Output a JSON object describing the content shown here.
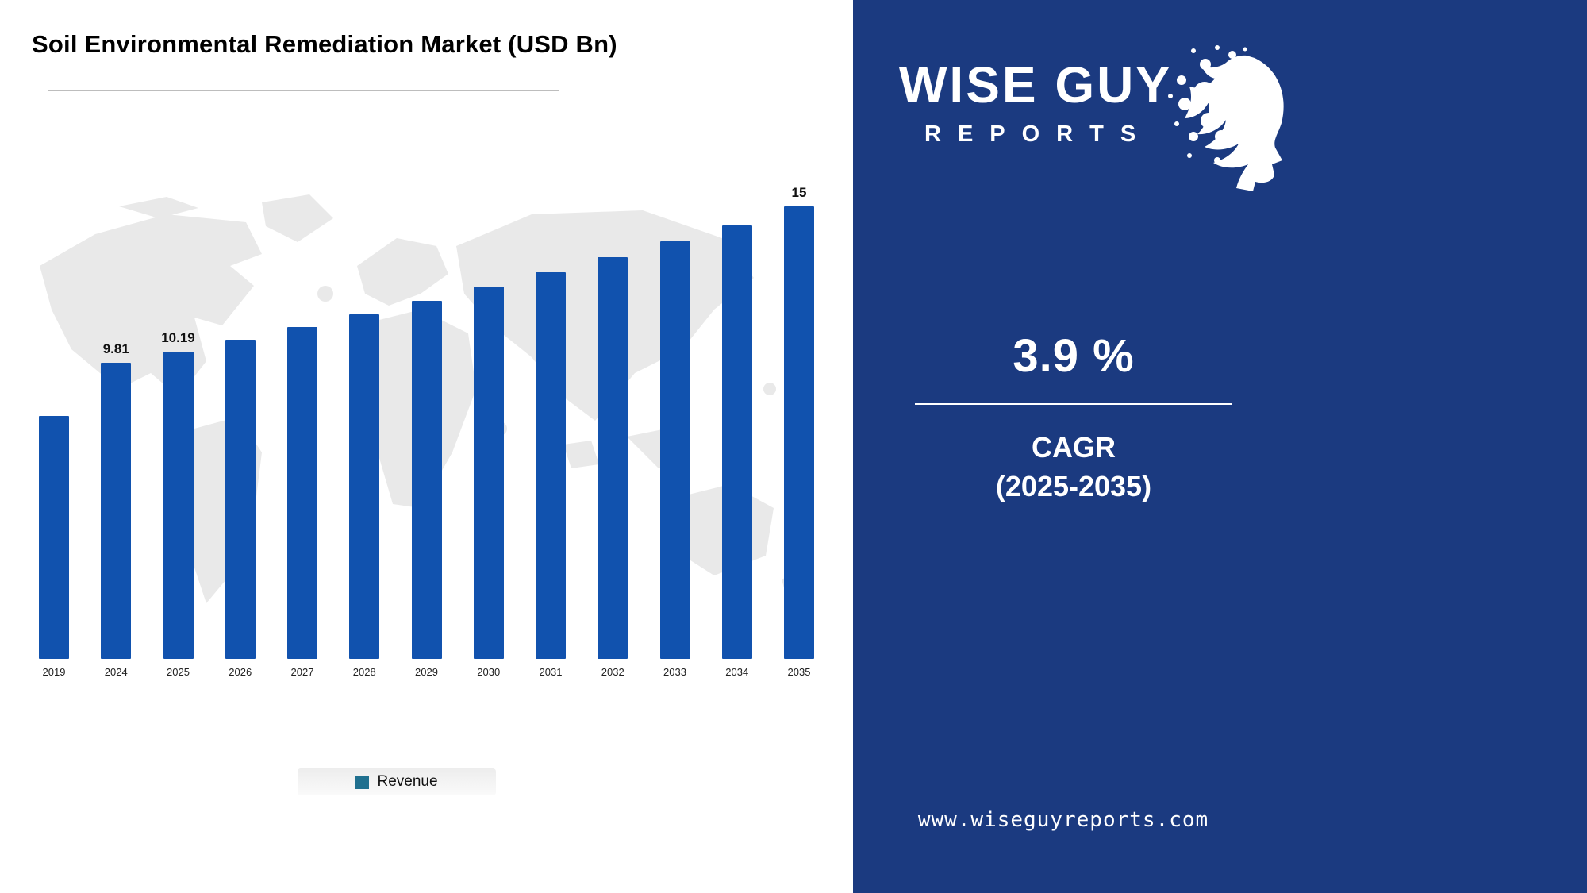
{
  "page": {
    "title": "Soil Environmental Remediation Market (USD Bn)"
  },
  "chart_data": {
    "type": "bar",
    "title": "Soil Environmental Remediation Market (USD Bn)",
    "categories": [
      "2019",
      "2024",
      "2025",
      "2026",
      "2027",
      "2028",
      "2029",
      "2030",
      "2031",
      "2032",
      "2033",
      "2034",
      "2035"
    ],
    "series": [
      {
        "name": "Revenue",
        "values": [
          8.05,
          9.81,
          10.19,
          10.59,
          11.0,
          11.43,
          11.87,
          12.34,
          12.82,
          13.32,
          13.84,
          14.38,
          15
        ]
      }
    ],
    "value_labels": {
      "2024": "9.81",
      "2025": "10.19",
      "2035": "15"
    },
    "xlabel": "",
    "ylabel": "",
    "ylim": [
      0,
      15
    ],
    "grid": false,
    "legend_position": "bottom",
    "legend_entries": [
      "Revenue"
    ],
    "bar_color": "#1152ae",
    "legend_swatch_color": "#20708f"
  },
  "legend": {
    "revenue_label": "Revenue"
  },
  "sidebar": {
    "background": "#1b3a80",
    "logo": {
      "line1": "WISE GUY",
      "line2": "REPORTS"
    },
    "cagr_value": "3.9 %",
    "cagr_label_line1": "CAGR",
    "cagr_label_line2": "(2025-2035)",
    "website": "www.wiseguyreports.com"
  }
}
